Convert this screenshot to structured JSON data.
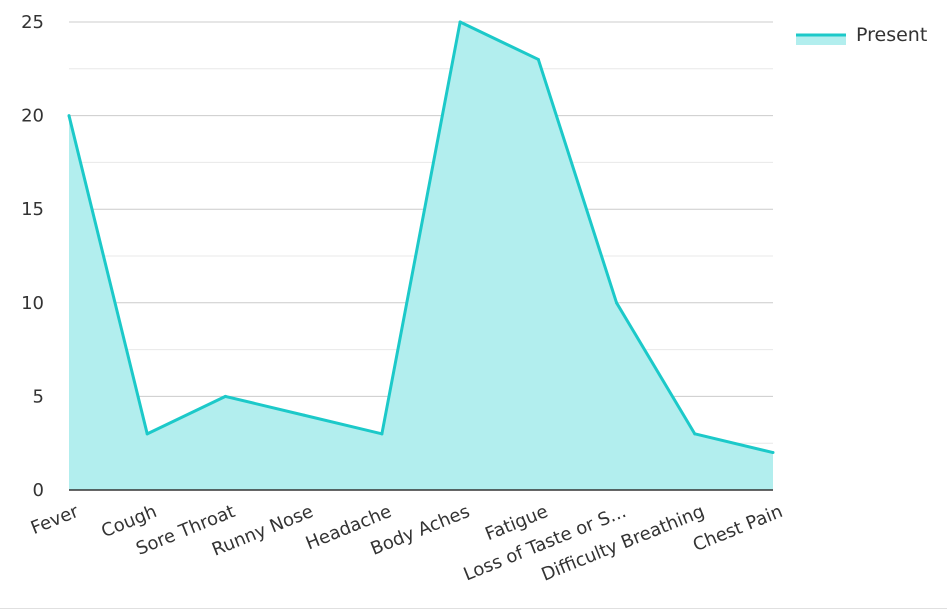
{
  "chart_data": {
    "type": "area",
    "title": "",
    "xlabel": "",
    "ylabel": "",
    "categories": [
      "Fever",
      "Cough",
      "Sore Throat",
      "Runny Nose",
      "Headache",
      "Body Aches",
      "Fatigue",
      "Loss of Taste or S...",
      "Difficulty Breathing",
      "Chest Pain"
    ],
    "series": [
      {
        "name": "Present",
        "values": [
          20,
          3,
          5,
          4,
          3,
          25,
          23,
          10,
          3,
          2
        ],
        "line_color": "#1cc9c9",
        "fill_color": "#b2eeee"
      }
    ],
    "ylim": [
      0,
      25
    ],
    "yticks": [
      0,
      5,
      10,
      15,
      20,
      25
    ],
    "grid": true,
    "legend_position": "top-right"
  }
}
